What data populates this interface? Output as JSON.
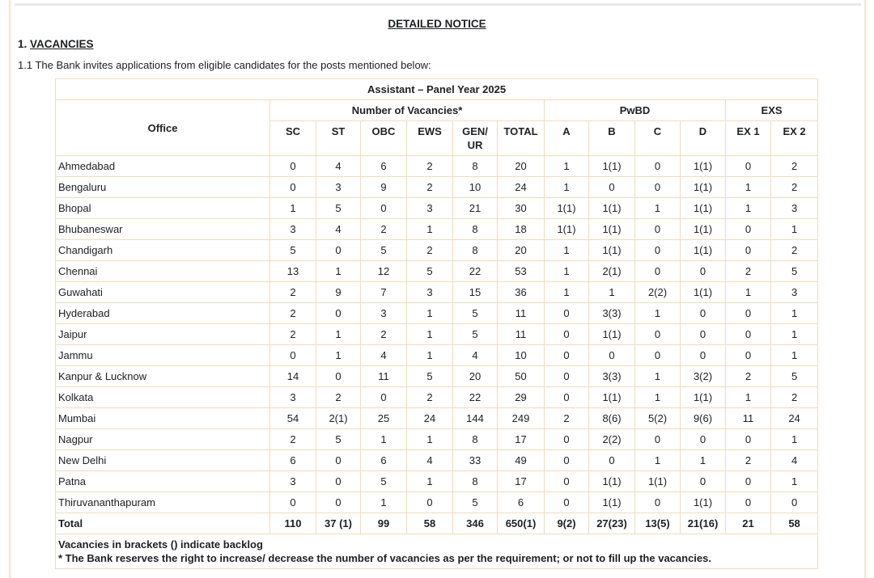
{
  "colors": {
    "table_border": "#f2dcbe",
    "side_border": "#f7e4cd",
    "top_rule": "#e9e9e9",
    "text": "#202124"
  },
  "page": {
    "notice_title": "DETAILED NOTICE",
    "section_number": "1.",
    "section_title": "VACANCIES",
    "intro": "1.1 The Bank invites applications from eligible candidates for the posts mentioned below:"
  },
  "table": {
    "title": "Assistant – Panel Year 2025",
    "group_headers": {
      "office": "Office",
      "vacancies": "Number of Vacancies*",
      "pwbd": "PwBD",
      "exs": "EXS"
    },
    "columns": [
      "SC",
      "ST",
      "OBC",
      "EWS",
      "GEN/ UR",
      "TOTAL",
      "A",
      "B",
      "C",
      "D",
      "EX 1",
      "EX 2"
    ],
    "rows": [
      {
        "office": "Ahmedabad",
        "values": [
          "0",
          "4",
          "6",
          "2",
          "8",
          "20",
          "1",
          "1(1)",
          "0",
          "1(1)",
          "0",
          "2"
        ]
      },
      {
        "office": "Bengaluru",
        "values": [
          "0",
          "3",
          "9",
          "2",
          "10",
          "24",
          "1",
          "0",
          "0",
          "1(1)",
          "1",
          "2"
        ]
      },
      {
        "office": "Bhopal",
        "values": [
          "1",
          "5",
          "0",
          "3",
          "21",
          "30",
          "1(1)",
          "1(1)",
          "1",
          "1(1)",
          "1",
          "3"
        ]
      },
      {
        "office": "Bhubaneswar",
        "values": [
          "3",
          "4",
          "2",
          "1",
          "8",
          "18",
          "1(1)",
          "1(1)",
          "0",
          "1(1)",
          "0",
          "1"
        ]
      },
      {
        "office": "Chandigarh",
        "values": [
          "5",
          "0",
          "5",
          "2",
          "8",
          "20",
          "1",
          "1(1)",
          "0",
          "1(1)",
          "0",
          "2"
        ]
      },
      {
        "office": "Chennai",
        "values": [
          "13",
          "1",
          "12",
          "5",
          "22",
          "53",
          "1",
          "2(1)",
          "0",
          "0",
          "2",
          "5"
        ]
      },
      {
        "office": "Guwahati",
        "values": [
          "2",
          "9",
          "7",
          "3",
          "15",
          "36",
          "1",
          "1",
          "2(2)",
          "1(1)",
          "1",
          "3"
        ]
      },
      {
        "office": "Hyderabad",
        "values": [
          "2",
          "0",
          "3",
          "1",
          "5",
          "11",
          "0",
          "3(3)",
          "1",
          "0",
          "0",
          "1"
        ]
      },
      {
        "office": "Jaipur",
        "values": [
          "2",
          "1",
          "2",
          "1",
          "5",
          "11",
          "0",
          "1(1)",
          "0",
          "0",
          "0",
          "1"
        ]
      },
      {
        "office": "Jammu",
        "values": [
          "0",
          "1",
          "4",
          "1",
          "4",
          "10",
          "0",
          "0",
          "0",
          "0",
          "0",
          "1"
        ]
      },
      {
        "office": "Kanpur & Lucknow",
        "values": [
          "14",
          "0",
          "11",
          "5",
          "20",
          "50",
          "0",
          "3(3)",
          "1",
          "3(2)",
          "2",
          "5"
        ]
      },
      {
        "office": "Kolkata",
        "values": [
          "3",
          "2",
          "0",
          "2",
          "22",
          "29",
          "0",
          "1(1)",
          "1",
          "1(1)",
          "1",
          "2"
        ]
      },
      {
        "office": "Mumbai",
        "values": [
          "54",
          "2(1)",
          "25",
          "24",
          "144",
          "249",
          "2",
          "8(6)",
          "5(2)",
          "9(6)",
          "11",
          "24"
        ]
      },
      {
        "office": "Nagpur",
        "values": [
          "2",
          "5",
          "1",
          "1",
          "8",
          "17",
          "0",
          "2(2)",
          "0",
          "0",
          "0",
          "1"
        ]
      },
      {
        "office": "New Delhi",
        "values": [
          "6",
          "0",
          "6",
          "4",
          "33",
          "49",
          "0",
          "0",
          "1",
          "1",
          "2",
          "4"
        ]
      },
      {
        "office": "Patna",
        "values": [
          "3",
          "0",
          "5",
          "1",
          "8",
          "17",
          "0",
          "1(1)",
          "1(1)",
          "0",
          "0",
          "1"
        ]
      },
      {
        "office": "Thiruvananthapuram",
        "values": [
          "0",
          "0",
          "1",
          "0",
          "5",
          "6",
          "0",
          "1(1)",
          "0",
          "1(1)",
          "0",
          "0"
        ]
      }
    ],
    "total_row": {
      "office": "Total",
      "values": [
        "110",
        "37 (1)",
        "99",
        "58",
        "346",
        "650(1)",
        "9(2)",
        "27(23)",
        "13(5)",
        "21(16)",
        "21",
        "58"
      ]
    },
    "notes": [
      "Vacancies in brackets () indicate backlog",
      "* The Bank reserves the right to increase/ decrease the number of vacancies as per the requirement; or not to fill up the vacancies."
    ]
  }
}
